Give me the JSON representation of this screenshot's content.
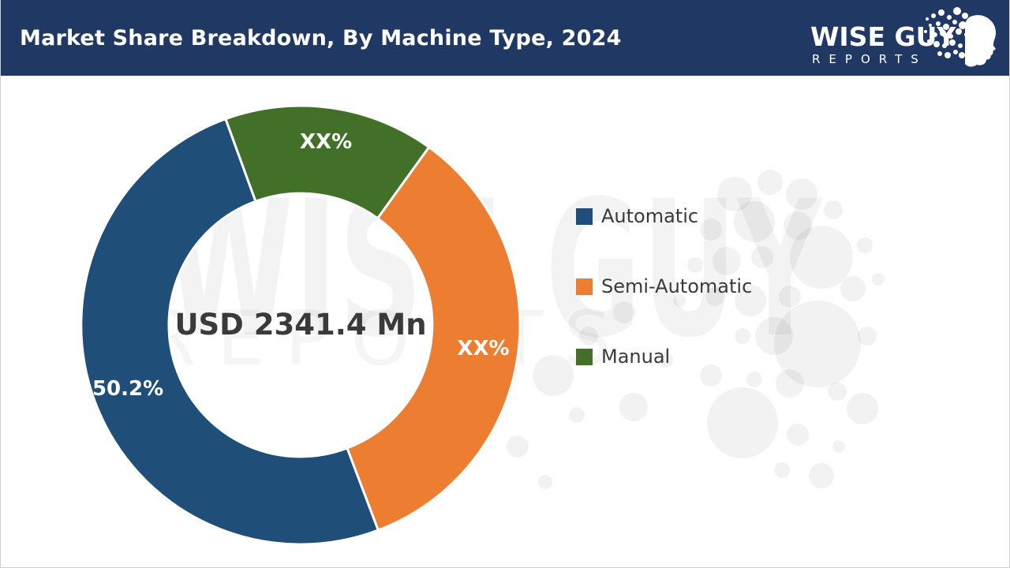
{
  "header": {
    "title": "Market Share Breakdown, By Machine Type, 2024",
    "background_color": "#203864",
    "logo": {
      "brand_line1": "WISE GUY",
      "brand_line2": "REPORTS"
    }
  },
  "chart_data": {
    "type": "pie",
    "variant": "donut",
    "title": "Market Share Breakdown, By Machine Type, 2024",
    "center_label": "USD 2341.4 Mn",
    "categories": [
      "Automatic",
      "Semi-Automatic",
      "Manual"
    ],
    "values": [
      50.2,
      34.3,
      15.5
    ],
    "slice_labels": [
      "50.2%",
      "XX%",
      "XX%"
    ],
    "colors": [
      "#1F4E79",
      "#ED7D31",
      "#427029"
    ],
    "start_angle_deg": 110,
    "direction": "counterclockwise",
    "inner_radius_ratio": 0.6,
    "slice_gap_color": "#ffffff",
    "legend_position": "right",
    "values_note": "Semi-Automatic and Manual slice labels are masked as XX% in the image; their numeric values are estimated from the arc angles."
  },
  "legend": {
    "items": [
      {
        "label": "Automatic",
        "color": "#1F4E79"
      },
      {
        "label": "Semi-Automatic",
        "color": "#ED7D31"
      },
      {
        "label": "Manual",
        "color": "#427029"
      }
    ]
  },
  "watermark": {
    "line1": "WISE GUY",
    "line2": "REPORTS"
  }
}
